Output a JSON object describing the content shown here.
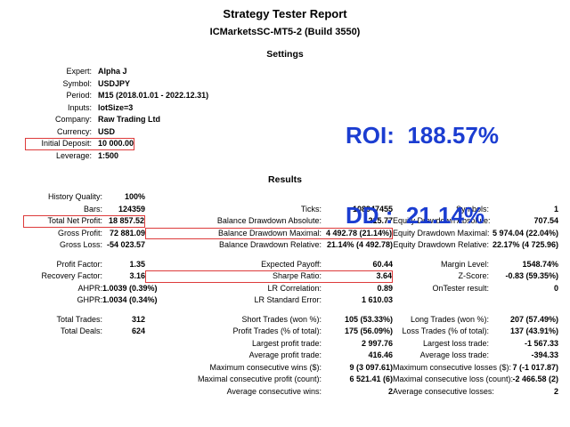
{
  "header": {
    "title": "Strategy Tester Report",
    "subtitle": "ICMarketsSC-MT5-2 (Build 3550)",
    "settings_heading": "Settings",
    "results_heading": "Results"
  },
  "overlay": {
    "roi_line": "ROI:  188.57%",
    "dd_line": "DD :  21.14%"
  },
  "colors": {
    "annotation_blue": "#1b3dd1",
    "highlight_red": "#dd3b3b"
  },
  "settings": {
    "rows": [
      {
        "cells": [
          "Expert:",
          "Alpha J"
        ]
      },
      {
        "cells": [
          "Symbol:",
          "USDJPY"
        ]
      },
      {
        "cells": [
          "Period:",
          "M15 (2018.01.01 - 2022.12.31)"
        ]
      },
      {
        "cells": [
          "Inputs:",
          "lotSize=3"
        ]
      },
      {
        "cells": [
          "Company:",
          "Raw Trading Ltd"
        ]
      },
      {
        "cells": [
          "Currency:",
          "USD"
        ]
      },
      {
        "cells": [
          "Initial Deposit:",
          "10 000.00"
        ],
        "box": 0
      },
      {
        "cells": [
          "Leverage:",
          "1:500"
        ]
      }
    ]
  },
  "results": {
    "rows": [
      {
        "cells": [
          "History Quality:",
          "100%",
          "",
          "",
          "",
          ""
        ]
      },
      {
        "cells": [
          "Bars:",
          "124359",
          "Ticks:",
          "108947455",
          "Symbols:",
          "1"
        ]
      },
      {
        "cells": [
          "Total Net Profit:",
          "18 857.52",
          "Balance Drawdown Absolute:",
          "215.77",
          "Equity Drawdown Absolute:",
          "707.54"
        ],
        "box": 0
      },
      {
        "cells": [
          "Gross Profit:",
          "72 881.09",
          "Balance Drawdown Maximal:",
          "4 492.78 (21.14%)",
          "Equity Drawdown Maximal:",
          "5 974.04 (22.04%)"
        ],
        "box": 1
      },
      {
        "cells": [
          "Gross Loss:",
          "-54 023.57",
          "Balance Drawdown Relative:",
          "21.14% (4 492.78)",
          "Equity Drawdown Relative:",
          "22.17% (4 725.96)"
        ]
      },
      {
        "gap": true
      },
      {
        "cells": [
          "Profit Factor:",
          "1.35",
          "Expected Payoff:",
          "60.44",
          "Margin Level:",
          "1548.74%"
        ]
      },
      {
        "cells": [
          "Recovery Factor:",
          "3.16",
          "Sharpe Ratio:",
          "3.64",
          "Z-Score:",
          "-0.83 (59.35%)"
        ],
        "box": 1
      },
      {
        "cells": [
          "AHPR:",
          "1.0039 (0.39%)",
          "LR Correlation:",
          "0.89",
          "OnTester result:",
          "0"
        ]
      },
      {
        "cells": [
          "GHPR:",
          "1.0034 (0.34%)",
          "LR Standard Error:",
          "1 610.03",
          "",
          ""
        ]
      },
      {
        "gap": true
      },
      {
        "cells": [
          "Total Trades:",
          "312",
          "Short Trades (won %):",
          "105 (53.33%)",
          "Long Trades (won %):",
          "207 (57.49%)"
        ]
      },
      {
        "cells": [
          "Total Deals:",
          "624",
          "Profit Trades (% of total):",
          "175 (56.09%)",
          "Loss Trades (% of total):",
          "137 (43.91%)"
        ]
      },
      {
        "cells": [
          "",
          "",
          "Largest profit trade:",
          "2 997.76",
          "Largest loss trade:",
          "-1 567.33"
        ]
      },
      {
        "cells": [
          "",
          "",
          "Average profit trade:",
          "416.46",
          "Average loss trade:",
          "-394.33"
        ]
      },
      {
        "cells": [
          "",
          "",
          "Maximum consecutive wins ($):",
          "9 (3 097.61)",
          "Maximum consecutive losses ($):",
          "7 (-1 017.87)"
        ]
      },
      {
        "cells": [
          "",
          "",
          "Maximal consecutive profit (count):",
          "6 521.41 (6)",
          "Maximal consecutive loss (count):",
          "-2 466.58 (2)"
        ]
      },
      {
        "cells": [
          "",
          "",
          "Average consecutive wins:",
          "2",
          "Average consecutive losses:",
          "2"
        ]
      }
    ]
  }
}
